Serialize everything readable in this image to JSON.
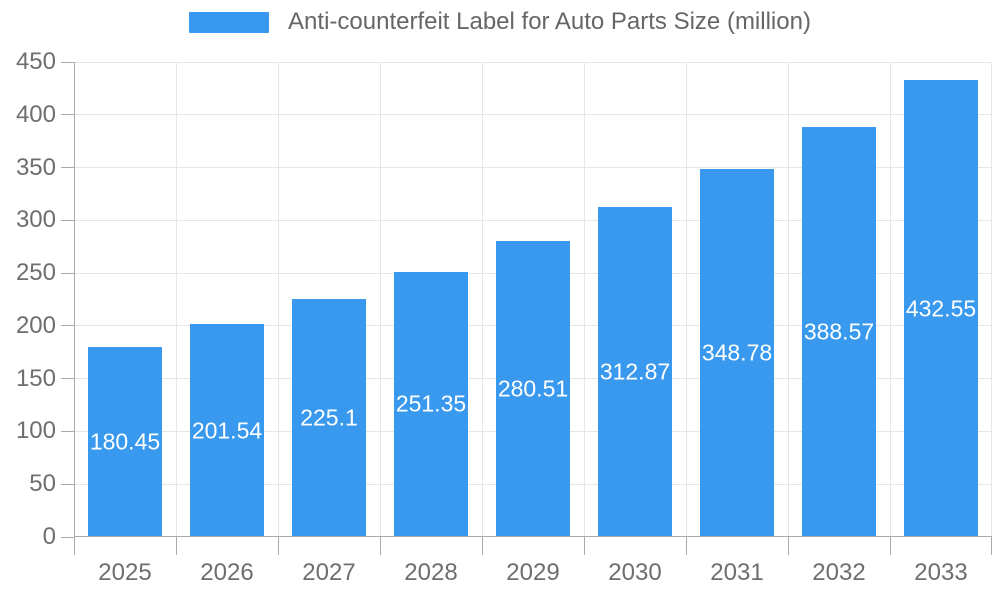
{
  "page": {
    "background": "#ffffff"
  },
  "legend": {
    "label": "Anti-counterfeit Label for Auto Parts Size (million)",
    "swatch_color": "#3899ee"
  },
  "chart_data": {
    "type": "bar",
    "title": "Anti-counterfeit Label for Auto Parts Size (million)",
    "categories": [
      "2025",
      "2026",
      "2027",
      "2028",
      "2029",
      "2030",
      "2031",
      "2032",
      "2033"
    ],
    "series": [
      {
        "name": "Anti-counterfeit Label for Auto Parts Size (million)",
        "values": [
          180.45,
          201.54,
          225.1,
          251.35,
          280.51,
          312.87,
          348.78,
          388.57,
          432.55
        ]
      }
    ],
    "value_labels": [
      "180.45",
      "201.54",
      "225.1",
      "251.35",
      "280.51",
      "312.87",
      "348.78",
      "388.57",
      "432.55"
    ],
    "xlabel": "",
    "ylabel": "",
    "ylim": [
      0,
      450
    ],
    "ytick_step": 50,
    "yticks": [
      "0",
      "50",
      "100",
      "150",
      "200",
      "250",
      "300",
      "350",
      "400",
      "450"
    ],
    "grid": true,
    "legend_position": "top",
    "colors": {
      "bar": "#3899ee",
      "bar_label_text": "#ffffff",
      "axis_line": "#aaaaaa",
      "gridline": "#e6e6e6",
      "axis_label_text": "#6e6e6e",
      "legend_text": "#666666"
    }
  }
}
